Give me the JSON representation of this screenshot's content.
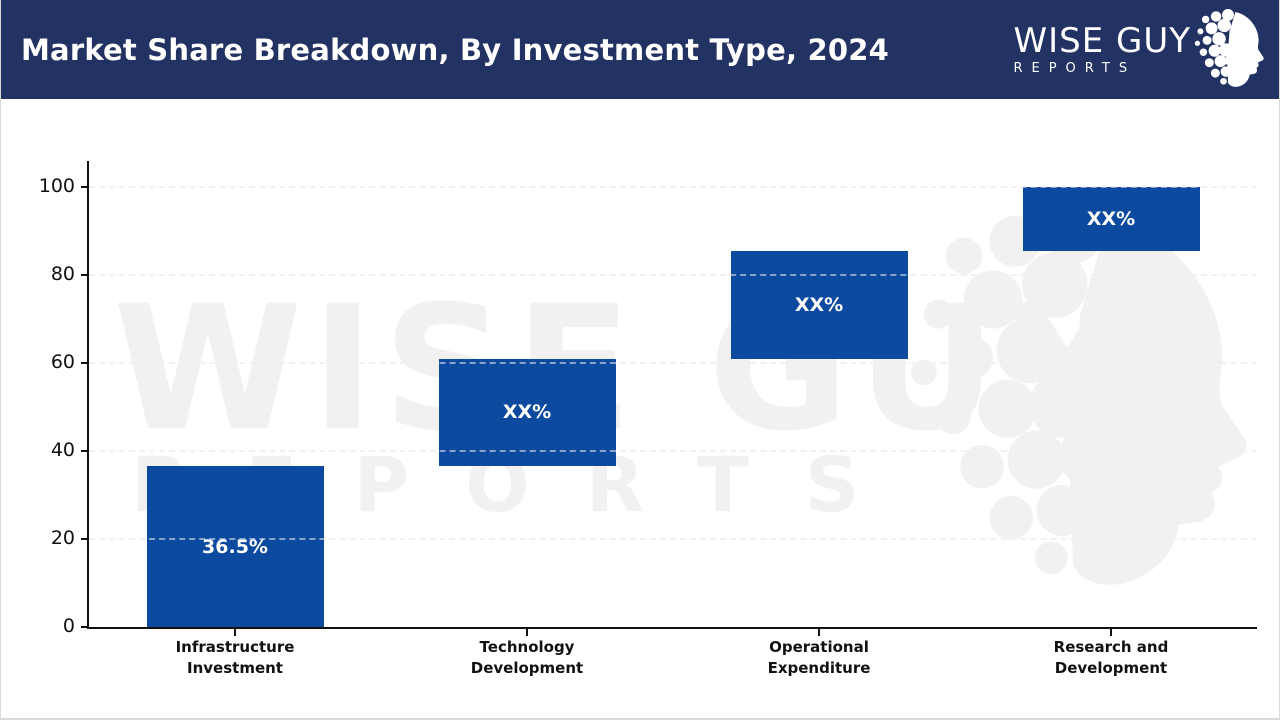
{
  "header": {
    "title": "Market Share Breakdown, By Investment Type, 2024"
  },
  "logo": {
    "brand_top": "WISE GUY",
    "brand_bottom": "REPORTS"
  },
  "watermark": {
    "line1": "WISE GUY",
    "line2": "REPORTS"
  },
  "colors": {
    "header_bg": "#223263",
    "bar_fill": "#0b4a9e",
    "bar_label": "#ffffff",
    "axis": "#111111",
    "gridline": "#e3e3e3",
    "watermark": "#f1f1f1"
  },
  "chart_data": {
    "type": "bar",
    "variant": "waterfall",
    "title": "Market Share Breakdown, By Investment Type, 2024",
    "categories": [
      "Infrastructure Investment",
      "Technology Development",
      "Operational Expenditure",
      "Research and Development"
    ],
    "category_lines": [
      [
        "Infrastructure",
        "Investment"
      ],
      [
        "Technology",
        "Development"
      ],
      [
        "Operational",
        "Expenditure"
      ],
      [
        "Research and",
        "Development"
      ]
    ],
    "segments": [
      {
        "category": "Infrastructure Investment",
        "start": 0,
        "end": 36.5,
        "label": "36.5%"
      },
      {
        "category": "Technology Development",
        "start": 36.5,
        "end": 61,
        "label": "XX%"
      },
      {
        "category": "Operational Expenditure",
        "start": 61,
        "end": 85.5,
        "label": "XX%"
      },
      {
        "category": "Research and Development",
        "start": 85.5,
        "end": 100,
        "label": "XX%"
      }
    ],
    "xlabel": "",
    "ylabel": "",
    "ylim": [
      0,
      100
    ],
    "yticks": [
      0,
      20,
      40,
      60,
      80,
      100
    ],
    "grid": "horizontal-dashed",
    "legend": "none"
  }
}
